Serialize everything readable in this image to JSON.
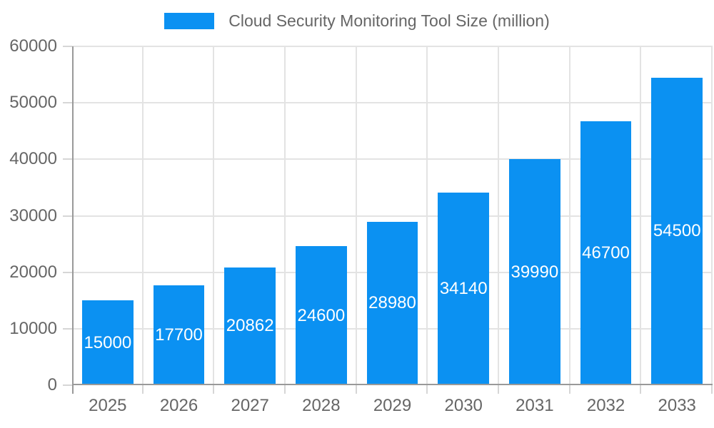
{
  "legend": {
    "label": "Cloud Security Monitoring Tool Size (million)"
  },
  "colors": {
    "bar": "#0b91f2",
    "axis_line": "#999999",
    "gridline": "#e3e3e3",
    "tick_mark": "#d6d6d6",
    "axis_text": "#666666",
    "bar_value_text": "#ffffff",
    "background": "#ffffff"
  },
  "chart_data": {
    "type": "bar",
    "title": "Cloud Security Monitoring Tool Size (million)",
    "categories": [
      "2025",
      "2026",
      "2027",
      "2028",
      "2029",
      "2030",
      "2031",
      "2032",
      "2033"
    ],
    "values": [
      15000,
      17700,
      20862,
      24600,
      28980,
      34140,
      39990,
      46700,
      54500
    ],
    "xlabel": "",
    "ylabel": "",
    "ylim": [
      0,
      60000
    ],
    "yticks": [
      0,
      10000,
      20000,
      30000,
      40000,
      50000,
      60000
    ],
    "grid": true,
    "grid_alignment": "category-boundaries",
    "legend_position": "top",
    "value_labels": "inside-center-white"
  }
}
